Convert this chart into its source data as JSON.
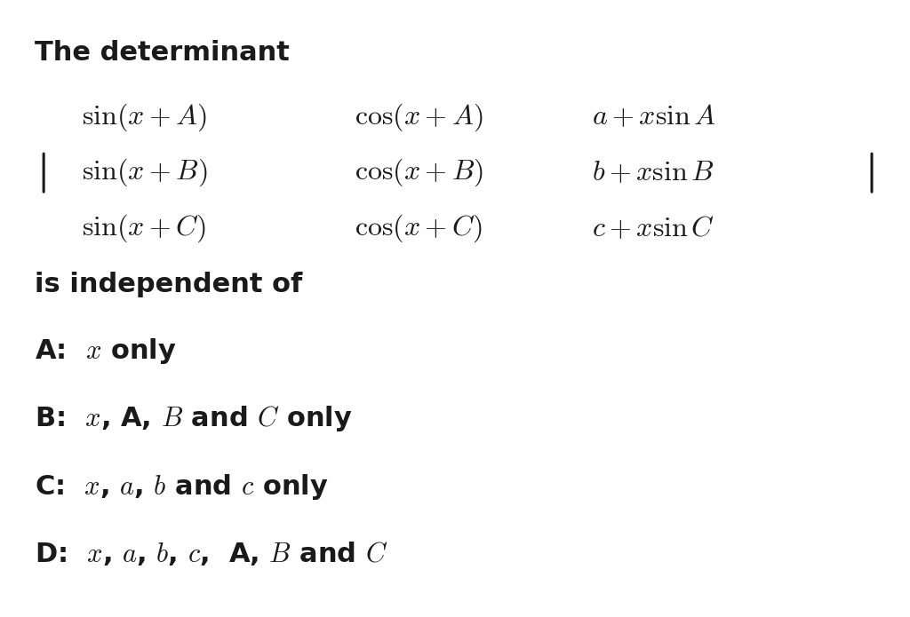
{
  "bg_color": "#ffffff",
  "text_color": "#1a1a1a",
  "figsize": [
    10.24,
    6.95
  ],
  "dpi": 100,
  "title": "The determinant",
  "independent": "is independent of",
  "row1": [
    "\\sin(x+A)",
    "\\cos(x+A)",
    "a + x\\sin A"
  ],
  "row2": [
    "\\sin(x+B)",
    "\\cos(x+B)",
    "b + x\\sin B"
  ],
  "row3": [
    "\\sin(x+C)",
    "\\cos(x+C)",
    "c + x\\sin C"
  ],
  "optA_prefix": "A: ",
  "optA_math": "x",
  "optA_suffix": " only",
  "optB_prefix": "B: ",
  "optB_math": "x",
  "optB_mid": ", A, ",
  "optB_math2": "B",
  "optB_end": " and ",
  "optB_math3": "C",
  "optB_suffix": " only",
  "optC_prefix": "C: ",
  "optC_math": "x",
  "optC_mid": ", ",
  "optC_math2": "a",
  "optC_mid2": ", ",
  "optC_math3": "b",
  "optC_end": " and ",
  "optC_math4": "c",
  "optC_suffix": " only",
  "optD_prefix": "D: ",
  "optD_math": "x",
  "optD_mid": ", ",
  "optD_math2": "a",
  "optD_mid2": ", ",
  "optD_math3": "b",
  "optD_mid3": ", ",
  "optD_math4": "c",
  "optD_mid4": ",  A, ",
  "optD_math5": "B",
  "optD_end": " and ",
  "optD_math6": "C"
}
